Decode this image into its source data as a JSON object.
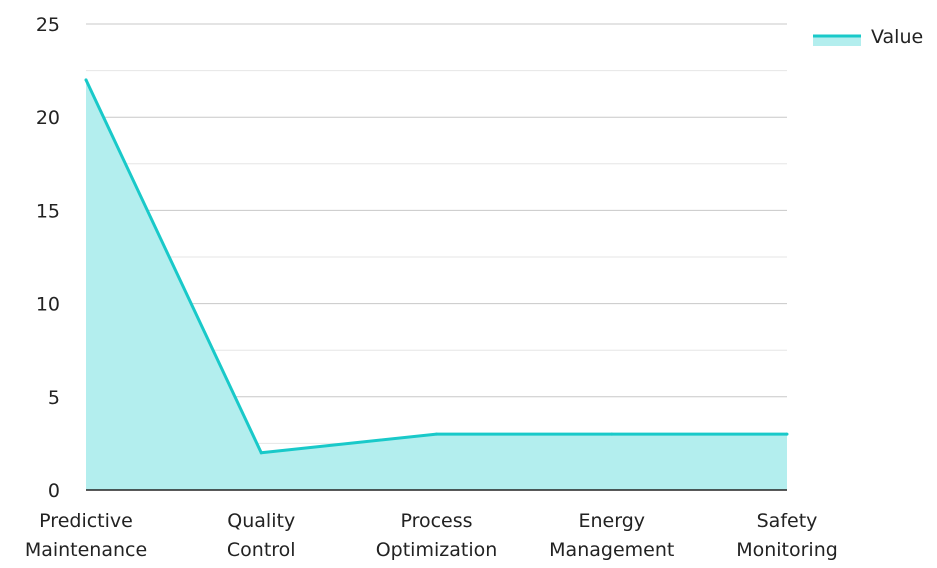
{
  "chart_data": {
    "type": "area",
    "title": "",
    "xlabel": "",
    "ylabel": "",
    "categories": [
      [
        "Predictive",
        "Maintenance"
      ],
      [
        "Quality",
        "Control"
      ],
      [
        "Process",
        "Optimization"
      ],
      [
        "Energy",
        "Management"
      ],
      [
        "Safety",
        "Monitoring"
      ]
    ],
    "series": [
      {
        "name": "Value",
        "values": [
          22,
          2,
          3,
          3,
          3
        ]
      }
    ],
    "ylim": [
      0,
      25
    ],
    "yticks": [
      "0",
      "5",
      "10",
      "15",
      "20",
      "25"
    ],
    "grid": true,
    "legend": "top-right",
    "colors": {
      "line": "#19c9c9",
      "fill": "#b3eeee",
      "grid_major": "#c8c8c8",
      "grid_minor": "#e6e6e6",
      "axis": "#222222"
    }
  }
}
